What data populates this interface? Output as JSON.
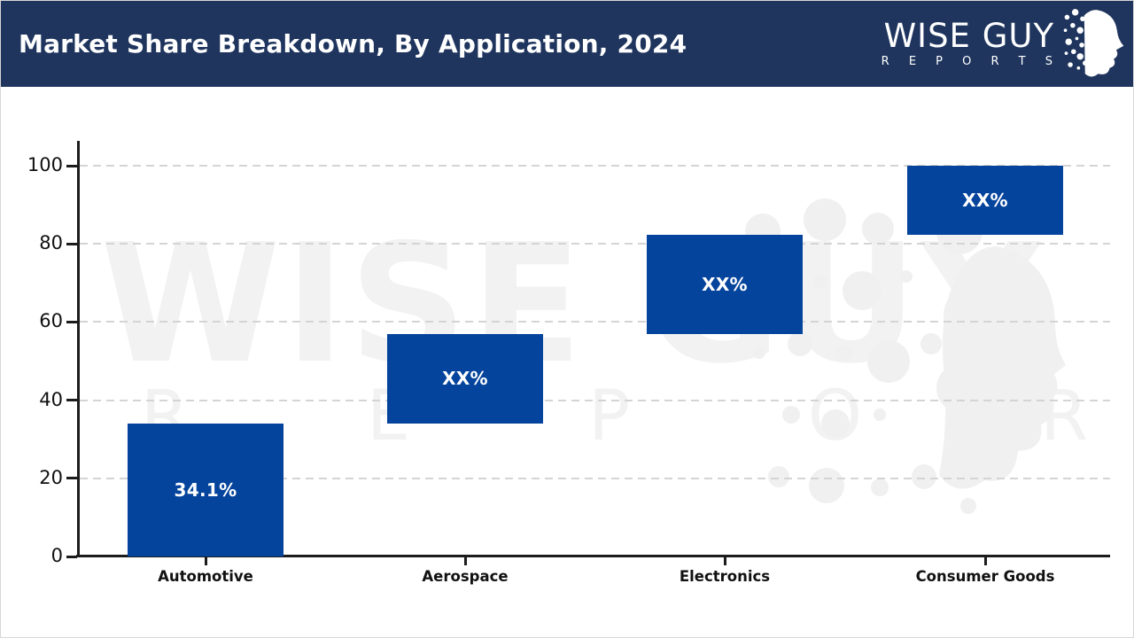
{
  "header": {
    "title": "Market Share Breakdown, By Application, 2024",
    "logo": {
      "line1": "WISE GUY",
      "line2": "R E P O R T S"
    }
  },
  "watermark": {
    "line1": "WISE GUY",
    "line2": "R E P O R T S"
  },
  "colors": {
    "header_bg": "#1F355E",
    "bar": "#05449C",
    "axis": "#1C1C1C",
    "grid": "#D4D4D4",
    "watermark": "#F2F2F2",
    "title_text": "#FFFFFF",
    "bar_label_text": "#FFFFFF"
  },
  "chart_data": {
    "type": "waterfall",
    "title": "Market Share Breakdown, By Application, 2024",
    "categories": [
      "Automotive",
      "Aerospace",
      "Electronics",
      "Consumer Goods"
    ],
    "segments": [
      {
        "category": "Automotive",
        "start": 0,
        "end": 34.1,
        "label": "34.1%"
      },
      {
        "category": "Aerospace",
        "start": 34.1,
        "end": 57.0,
        "label": "XX%"
      },
      {
        "category": "Electronics",
        "start": 57.0,
        "end": 82.4,
        "label": "XX%"
      },
      {
        "category": "Consumer Goods",
        "start": 82.4,
        "end": 100.0,
        "label": "XX%"
      }
    ],
    "xlabel": "",
    "ylabel": "",
    "ylim": [
      0,
      100
    ],
    "yticks": [
      0,
      20,
      40,
      60,
      80,
      100
    ],
    "grid": "horizontal dashed",
    "legend": "none"
  }
}
